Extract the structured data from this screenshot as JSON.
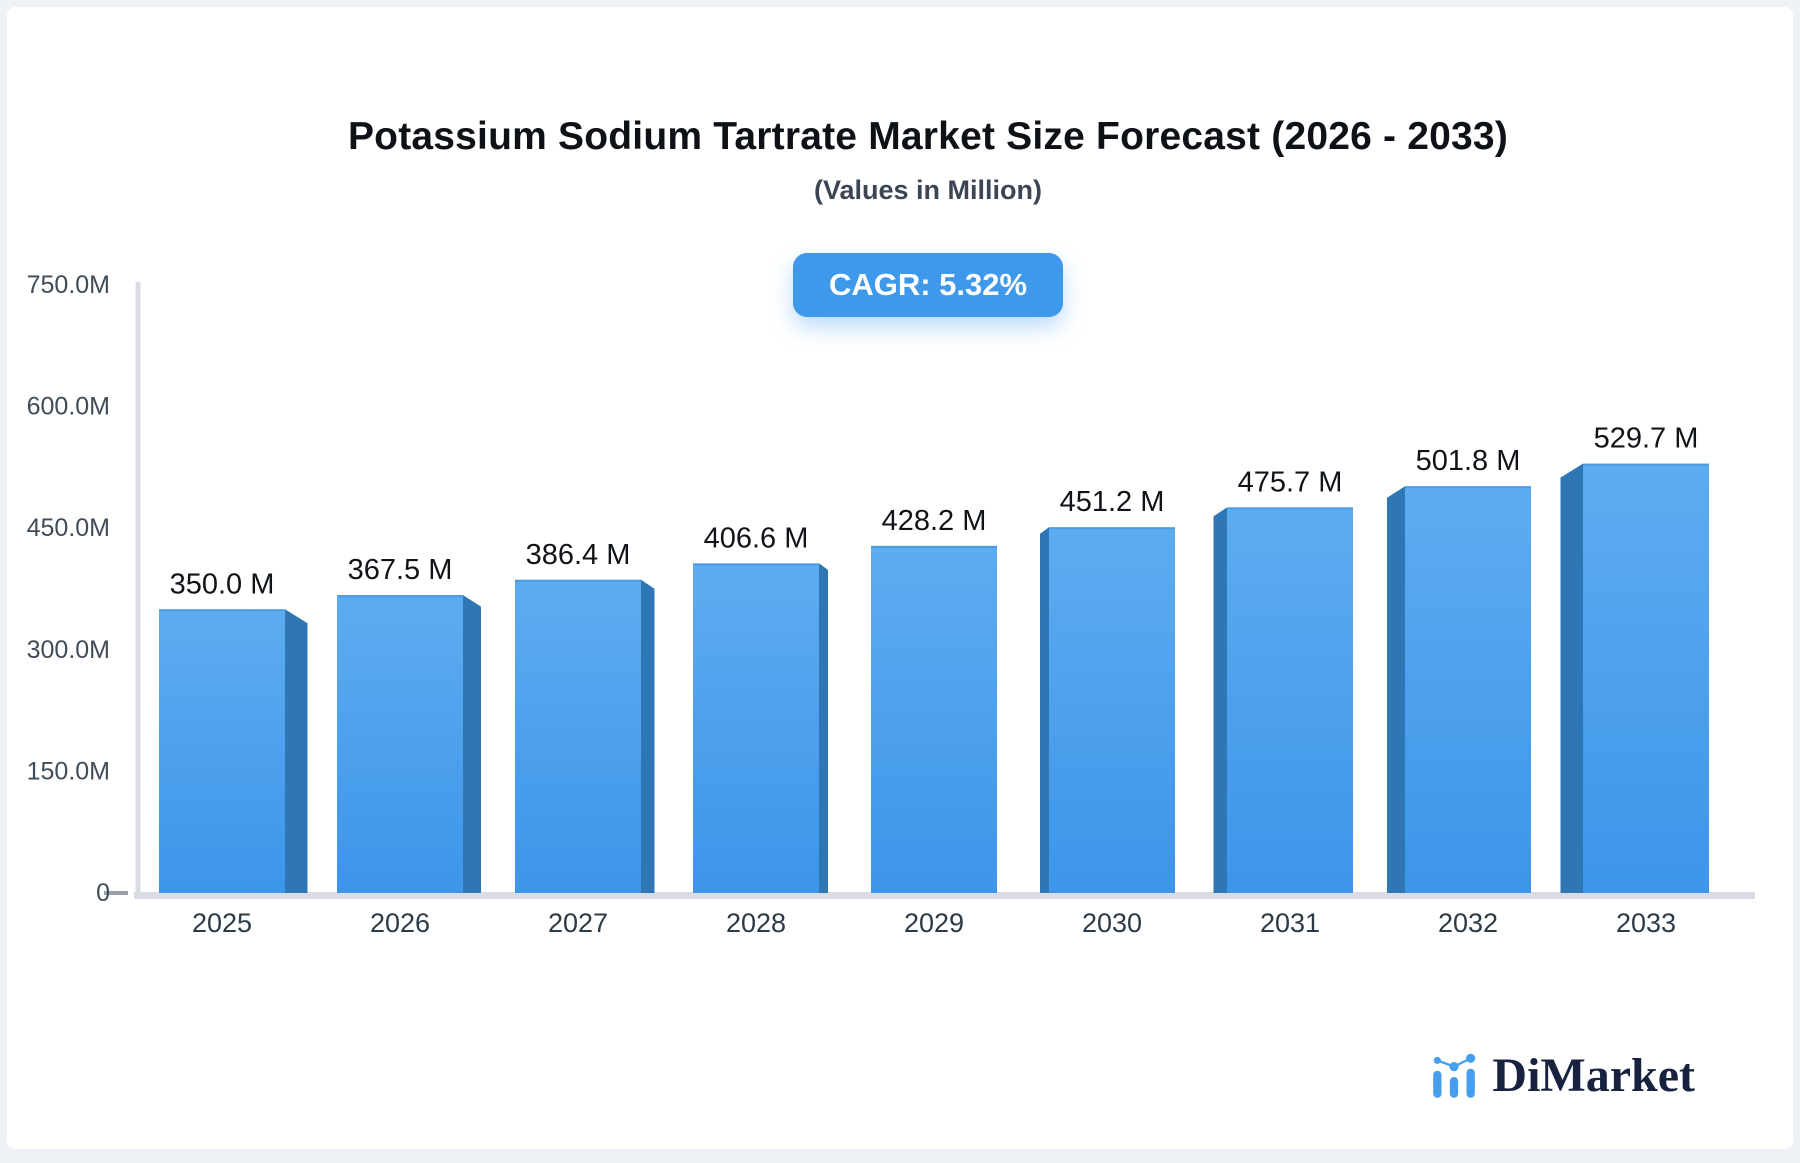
{
  "header": {
    "title": "Potassium Sodium Tartrate Market Size Forecast (2026 - 2033)",
    "subtitle": "(Values in Million)"
  },
  "badge": {
    "label": "CAGR: 5.32%",
    "background_color": "#3e99eb",
    "text_color": "#ffffff"
  },
  "chart_data": {
    "type": "bar",
    "title": "Potassium Sodium Tartrate Market Size Forecast (2026 - 2033)",
    "subtitle": "(Values in Million)",
    "categories": [
      "2025",
      "2026",
      "2027",
      "2028",
      "2029",
      "2030",
      "2031",
      "2032",
      "2033"
    ],
    "values": [
      350.0,
      367.5,
      386.4,
      406.6,
      428.2,
      451.2,
      475.7,
      501.8,
      529.7
    ],
    "value_labels": [
      "350.0 M",
      "367.5 M",
      "386.4 M",
      "406.6 M",
      "428.2 M",
      "451.2 M",
      "475.7 M",
      "501.8 M",
      "529.7 M"
    ],
    "unit": "Million",
    "xlabel": "",
    "ylabel": "",
    "ylim": [
      0,
      750
    ],
    "yticks": [
      {
        "label": "750.0M",
        "value": 750
      },
      {
        "label": "600.0M",
        "value": 600
      },
      {
        "label": "450.0M",
        "value": 450
      },
      {
        "label": "300.0M",
        "value": 300
      },
      {
        "label": "150.0M",
        "value": 150
      },
      {
        "label": "0",
        "value": 0
      }
    ],
    "grid": false,
    "legend": "none",
    "style": "3d-perspective-bars",
    "bar_color_top": "#5dacf0",
    "bar_color_bottom": "#3d95e9",
    "bar_side_color": "#2e76b4",
    "bar_top_edge_color": "#3d88cc",
    "axis_color": "#d9dce2",
    "tick_dash_color": "#98a0ab"
  },
  "brand": {
    "name": "DiMarket",
    "icon_color": "#479eed",
    "text_color": "#17223e"
  }
}
